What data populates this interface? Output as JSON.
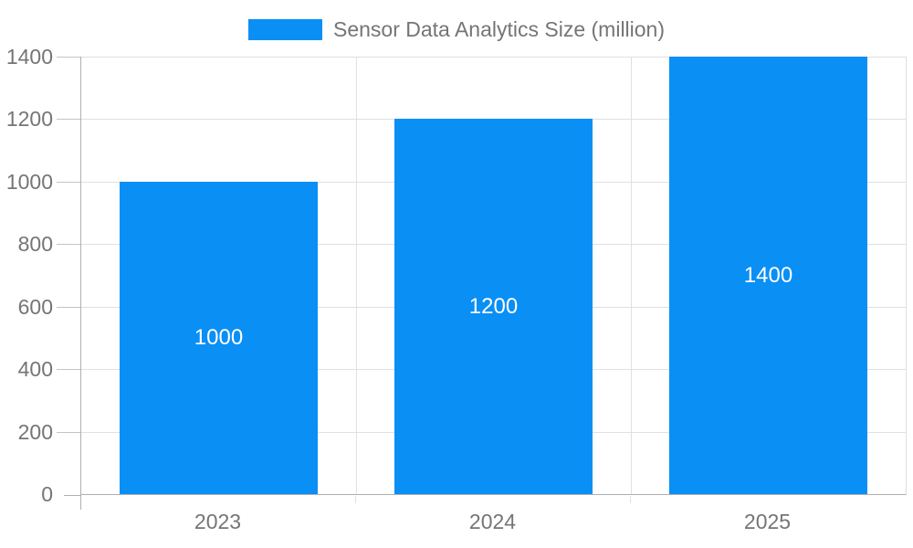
{
  "legend": {
    "label": "Sensor Data Analytics Size (million)"
  },
  "colors": {
    "bar": "#0a8ff5",
    "grid": "#e0e0e0",
    "axis": "#b0b0b0",
    "tick": "#c4c4c4",
    "text": "#757575",
    "bar_label": "#ffffff"
  },
  "chart_data": {
    "type": "bar",
    "categories": [
      "2023",
      "2024",
      "2025"
    ],
    "values": [
      1000,
      1200,
      1400
    ],
    "bar_labels": [
      "1000",
      "1200",
      "1400"
    ],
    "series_name": "Sensor Data Analytics Size (million)",
    "title": "",
    "xlabel": "",
    "ylabel": "",
    "ylim": [
      0,
      1400
    ],
    "ytick_step": 200,
    "ytick_labels": [
      "0",
      "200",
      "400",
      "600",
      "800",
      "1000",
      "1200",
      "1400"
    ],
    "grid": true,
    "legend_position": "top"
  }
}
